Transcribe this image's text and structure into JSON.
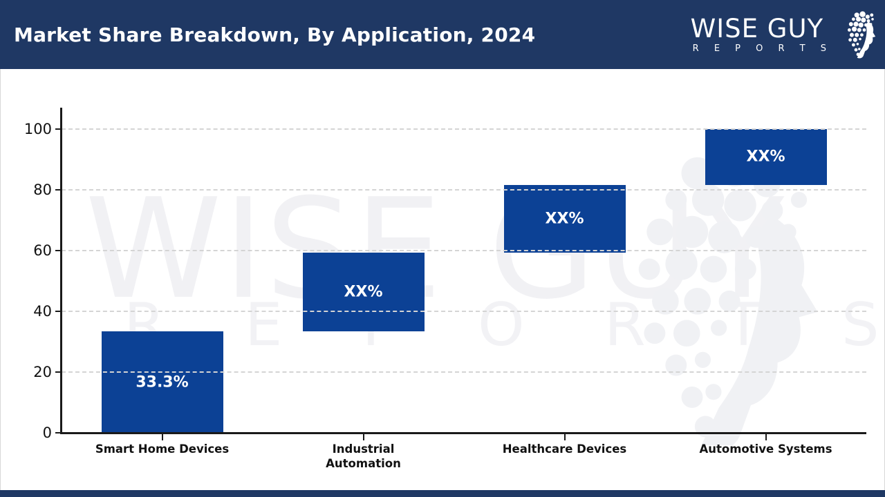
{
  "header": {
    "title": "Market Share Breakdown, By Application, 2024",
    "logo_line1": "WISE GUY",
    "logo_line2": "R E P O R T S"
  },
  "watermark": {
    "line1": "WISE GUY",
    "line2": "R E P O R T S"
  },
  "chart_data": {
    "type": "bar",
    "subtype": "waterfall",
    "title": "Market Share Breakdown, By Application, 2024",
    "categories": [
      "Smart Home Devices",
      "Industrial\nAutomation",
      "Healthcare Devices",
      "Automotive Systems"
    ],
    "bars": [
      {
        "category": "Smart Home Devices",
        "start": 0,
        "end": 33.3,
        "label": "33.3%"
      },
      {
        "category": "Industrial Automation",
        "start": 33.3,
        "end": 59.3,
        "label": "XX%"
      },
      {
        "category": "Healthcare Devices",
        "start": 59.3,
        "end": 81.6,
        "label": "XX%"
      },
      {
        "category": "Automotive Systems",
        "start": 81.6,
        "end": 100,
        "label": "XX%"
      }
    ],
    "ylim": [
      0,
      100
    ],
    "yticks": [
      0,
      20,
      40,
      60,
      80,
      100
    ],
    "xlabel": "",
    "ylabel": "",
    "grid": {
      "horizontal": true,
      "style": "dashed"
    },
    "legend": null,
    "colors": {
      "bar": "#0c4195",
      "bar_label": "#ffffff",
      "axis": "#1a1a1a",
      "tick_label": "#111111",
      "grid": "#d4d4d4",
      "header_bg": "#1f3864",
      "watermark": "#f1f1f4"
    }
  }
}
